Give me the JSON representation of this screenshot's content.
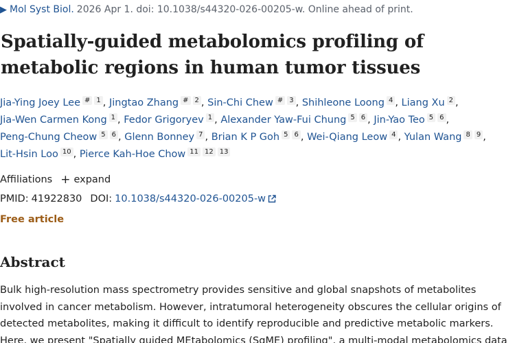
{
  "journal": {
    "chevron": "▶",
    "name": "Mol Syst Biol.",
    "meta": "2026 Apr 1. doi: 10.1038/s44320-026-00205-w. Online ahead of print."
  },
  "title": "Spatially-guided metabolomics profiling of metabolic regions in human tumor tissues",
  "authors": [
    {
      "name": "Jia-Ying Joey Lee",
      "sups": [
        "#",
        "1"
      ]
    },
    {
      "name": "Jingtao Zhang",
      "sups": [
        "#",
        "2"
      ]
    },
    {
      "name": "Sin-Chi Chew",
      "sups": [
        "#",
        "3"
      ]
    },
    {
      "name": "Shihleone Loong",
      "sups": [
        "4"
      ]
    },
    {
      "name": "Liang Xu",
      "sups": [
        "2"
      ]
    },
    {
      "name": "Jia-Wen Carmen Kong",
      "sups": [
        "1"
      ]
    },
    {
      "name": "Fedor Grigoryev",
      "sups": [
        "1"
      ]
    },
    {
      "name": "Alexander Yaw-Fui Chung",
      "sups": [
        "5",
        "6"
      ]
    },
    {
      "name": "Jin-Yao Teo",
      "sups": [
        "5",
        "6"
      ]
    },
    {
      "name": "Peng-Chung Cheow",
      "sups": [
        "5",
        "6"
      ]
    },
    {
      "name": "Glenn Bonney",
      "sups": [
        "7"
      ]
    },
    {
      "name": "Brian K P Goh",
      "sups": [
        "5",
        "6"
      ]
    },
    {
      "name": "Wei-Qiang Leow",
      "sups": [
        "4"
      ]
    },
    {
      "name": "Yulan Wang",
      "sups": [
        "8",
        "9"
      ]
    },
    {
      "name": "Lit-Hsin Loo",
      "sups": [
        "10"
      ]
    },
    {
      "name": "Pierce Kah-Hoe Chow",
      "sups": [
        "11",
        "12",
        "13"
      ]
    }
  ],
  "affiliations": {
    "label": "Affiliations",
    "expand_symbol": "+",
    "expand_label": "expand"
  },
  "identifiers": {
    "pmid_label": "PMID:",
    "pmid": "41922830",
    "doi_label": "DOI:",
    "doi": "10.1038/s44320-026-00205-w"
  },
  "free_article": "Free article",
  "abstract": {
    "heading": "Abstract",
    "lines": [
      "Bulk high-resolution mass spectrometry provides sensitive and global snapshots of metabolites",
      "involved in cancer metabolism. However, intratumoral heterogeneity obscures the cellular origins of",
      "detected metabolites, making it difficult to identify reproducible and predictive metabolic markers.",
      "Here, we present \"Spatially guided MEtabolomics (SgME) profiling\", a multi-modal metabolomics data"
    ]
  },
  "colors": {
    "link": "#205493",
    "text": "#212121",
    "free_article": "#9c5d18",
    "muted": "#5b616b",
    "sup_bg": "#f1f1f1"
  }
}
